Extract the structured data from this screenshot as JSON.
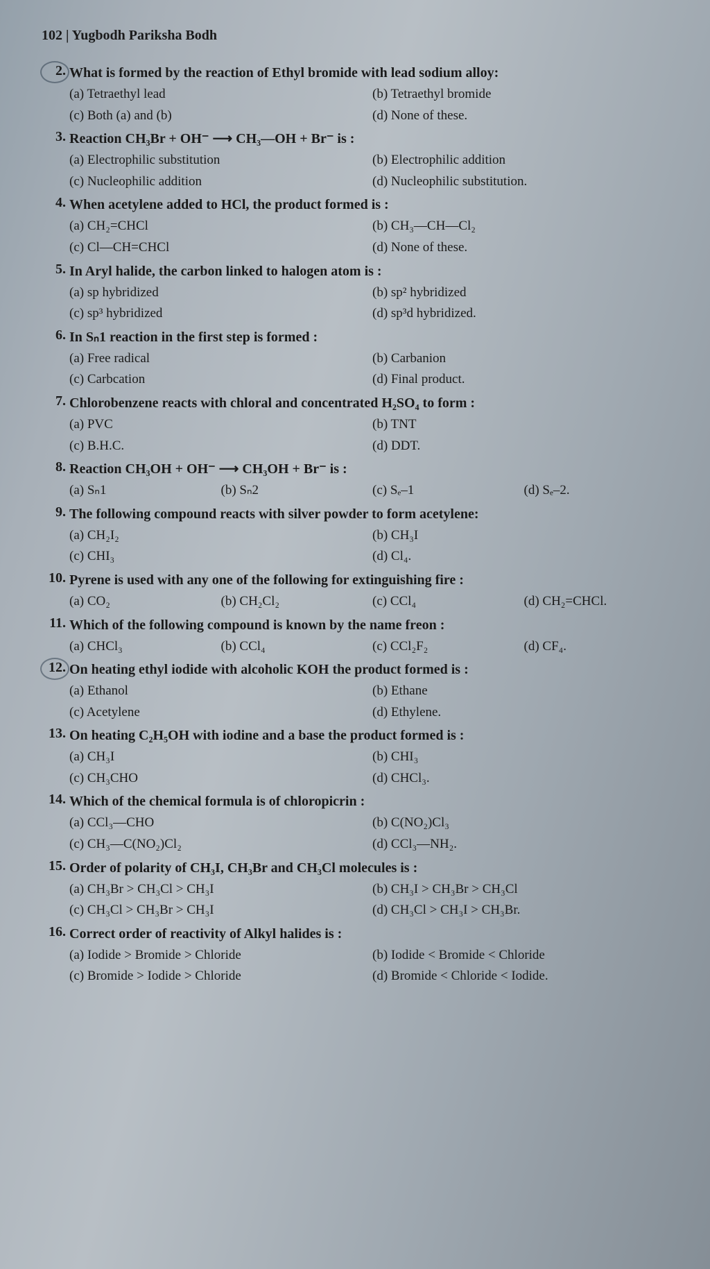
{
  "header": "102 | Yugbodh Pariksha Bodh",
  "questions": [
    {
      "num": "2.",
      "circled": true,
      "text": "What is formed by the reaction of Ethyl bromide with lead sodium alloy:",
      "cols": 2,
      "opts": {
        "a": "(a) Tetraethyl lead",
        "b": "(b) Tetraethyl bromide",
        "c": "(c) Both (a) and (b)",
        "d": "(d) None of these."
      }
    },
    {
      "num": "3.",
      "text": "Reaction CH₃Br + OH⁻ ⟶ CH₃—OH + Br⁻ is :",
      "cols": 2,
      "opts": {
        "a": "(a) Electrophilic substitution",
        "b": "(b) Electrophilic addition",
        "c": "(c) Nucleophilic addition",
        "d": "(d) Nucleophilic substitution."
      }
    },
    {
      "num": "4.",
      "text": "When acetylene added to HCl, the product formed is :",
      "cols": 2,
      "opts": {
        "a": "(a) CH₂=CHCl",
        "b": "(b) CH₃—CH—Cl₂",
        "c": "(c) Cl—CH=CHCl",
        "d": "(d) None of these."
      }
    },
    {
      "num": "5.",
      "text": "In Aryl halide, the carbon linked to halogen atom is :",
      "cols": 2,
      "opts": {
        "a": "(a) sp hybridized",
        "b": "(b) sp² hybridized",
        "c": "(c) sp³ hybridized",
        "d": "(d) sp³d hybridized."
      }
    },
    {
      "num": "6.",
      "text": "In Sₙ1 reaction in the first step is formed :",
      "cols": 2,
      "opts": {
        "a": "(a) Free radical",
        "b": "(b) Carbanion",
        "c": "(c) Carbcation",
        "d": "(d) Final product."
      }
    },
    {
      "num": "7.",
      "text": "Chlorobenzene reacts with chloral and concentrated H₂SO₄ to form :",
      "cols": 2,
      "opts": {
        "a": "(a) PVC",
        "b": "(b) TNT",
        "c": "(c) B.H.C.",
        "d": "(d) DDT."
      }
    },
    {
      "num": "8.",
      "text": "Reaction CH₃OH + OH⁻ ⟶ CH₃OH + Br⁻ is :",
      "cols": 4,
      "opts": {
        "a": "(a) Sₙ1",
        "b": "(b) Sₙ2",
        "c": "(c) Sₑ–1",
        "d": "(d) Sₑ–2."
      }
    },
    {
      "num": "9.",
      "text": "The following compound reacts with silver powder to form acetylene:",
      "cols": 2,
      "opts": {
        "a": "(a) CH₂I₂",
        "b": "(b) CH₃I",
        "c": "(c) CHI₃",
        "d": "(d) Cl₄."
      }
    },
    {
      "num": "10.",
      "text": "Pyrene is used with any one of the following for extinguishing fire :",
      "cols": 4,
      "opts": {
        "a": "(a) CO₂",
        "b": "(b) CH₂Cl₂",
        "c": "(c) CCl₄",
        "d": "(d) CH₂=CHCl."
      }
    },
    {
      "num": "11.",
      "text": "Which of the following compound is known by the name freon :",
      "cols": 4,
      "opts": {
        "a": "(a) CHCl₃",
        "b": "(b) CCl₄",
        "c": "(c) CCl₂F₂",
        "d": "(d) CF₄."
      }
    },
    {
      "num": "12.",
      "circled": true,
      "text": "On heating ethyl iodide with alcoholic KOH the product formed is :",
      "cols": 2,
      "opts": {
        "a": "(a) Ethanol",
        "b": "(b) Ethane",
        "c": "(c) Acetylene",
        "d": "(d) Ethylene."
      }
    },
    {
      "num": "13.",
      "text": "On heating C₂H₅OH with iodine and a base the product formed is :",
      "cols": 2,
      "opts": {
        "a": "(a) CH₃I",
        "b": "(b) CHI₃",
        "c": "(c) CH₃CHO",
        "d": "(d) CHCl₃."
      }
    },
    {
      "num": "14.",
      "text": "Which of the chemical formula is of chloropicrin :",
      "cols": 2,
      "opts": {
        "a": "(a) CCl₃—CHO",
        "b": "(b) C(NO₂)Cl₃",
        "c": "(c) CH₃—C(NO₂)Cl₂",
        "d": "(d) CCl₃—NH₂."
      }
    },
    {
      "num": "15.",
      "text": "Order of polarity of CH₃I, CH₃Br and CH₃Cl molecules is :",
      "cols": 2,
      "opts": {
        "a": "(a) CH₃Br > CH₃Cl > CH₃I",
        "b": "(b) CH₃I > CH₃Br > CH₃Cl",
        "c": "(c) CH₃Cl > CH₃Br > CH₃I",
        "d": "(d) CH₃Cl > CH₃I > CH₃Br."
      }
    },
    {
      "num": "16.",
      "text": "Correct order of reactivity of Alkyl halides is :",
      "cols": 2,
      "opts": {
        "a": "(a) Iodide > Bromide > Chloride",
        "b": "(b) Iodide < Bromide < Chloride",
        "c": "(c) Bromide > Iodide > Chloride",
        "d": "(d) Bromide < Chloride < Iodide."
      }
    }
  ]
}
